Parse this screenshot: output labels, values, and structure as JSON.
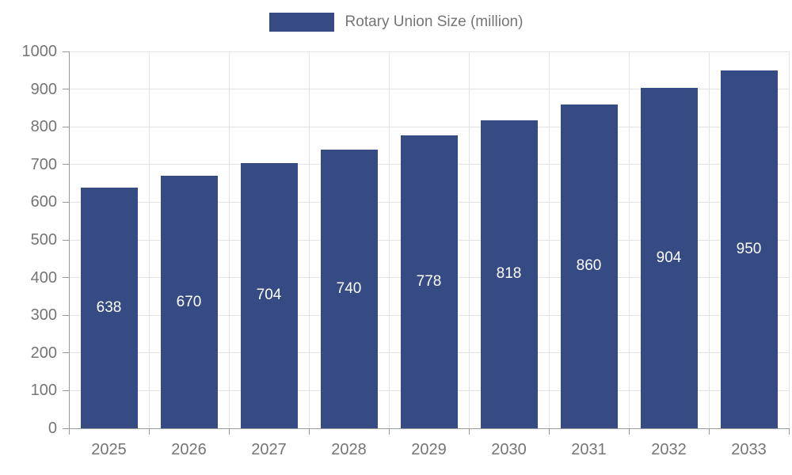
{
  "chart_data": {
    "type": "bar",
    "title": "",
    "legend": "Rotary Union Size (million)",
    "categories": [
      "2025",
      "2026",
      "2027",
      "2028",
      "2029",
      "2030",
      "2031",
      "2032",
      "2033"
    ],
    "values": [
      638,
      670,
      704,
      740,
      778,
      818,
      860,
      904,
      950
    ],
    "xlabel": "",
    "ylabel": "",
    "ylim": [
      0,
      1000
    ],
    "ytick_step": 100,
    "grid": true,
    "legend_position": "top-center",
    "colors": {
      "bar": "#364A83",
      "bar_value_label": "#ffffff",
      "axis_line": "#999999",
      "grid_line": "#e3e3e6",
      "tick_label": "#757575",
      "legend_text": "#757575",
      "background": "#ffffff"
    }
  }
}
